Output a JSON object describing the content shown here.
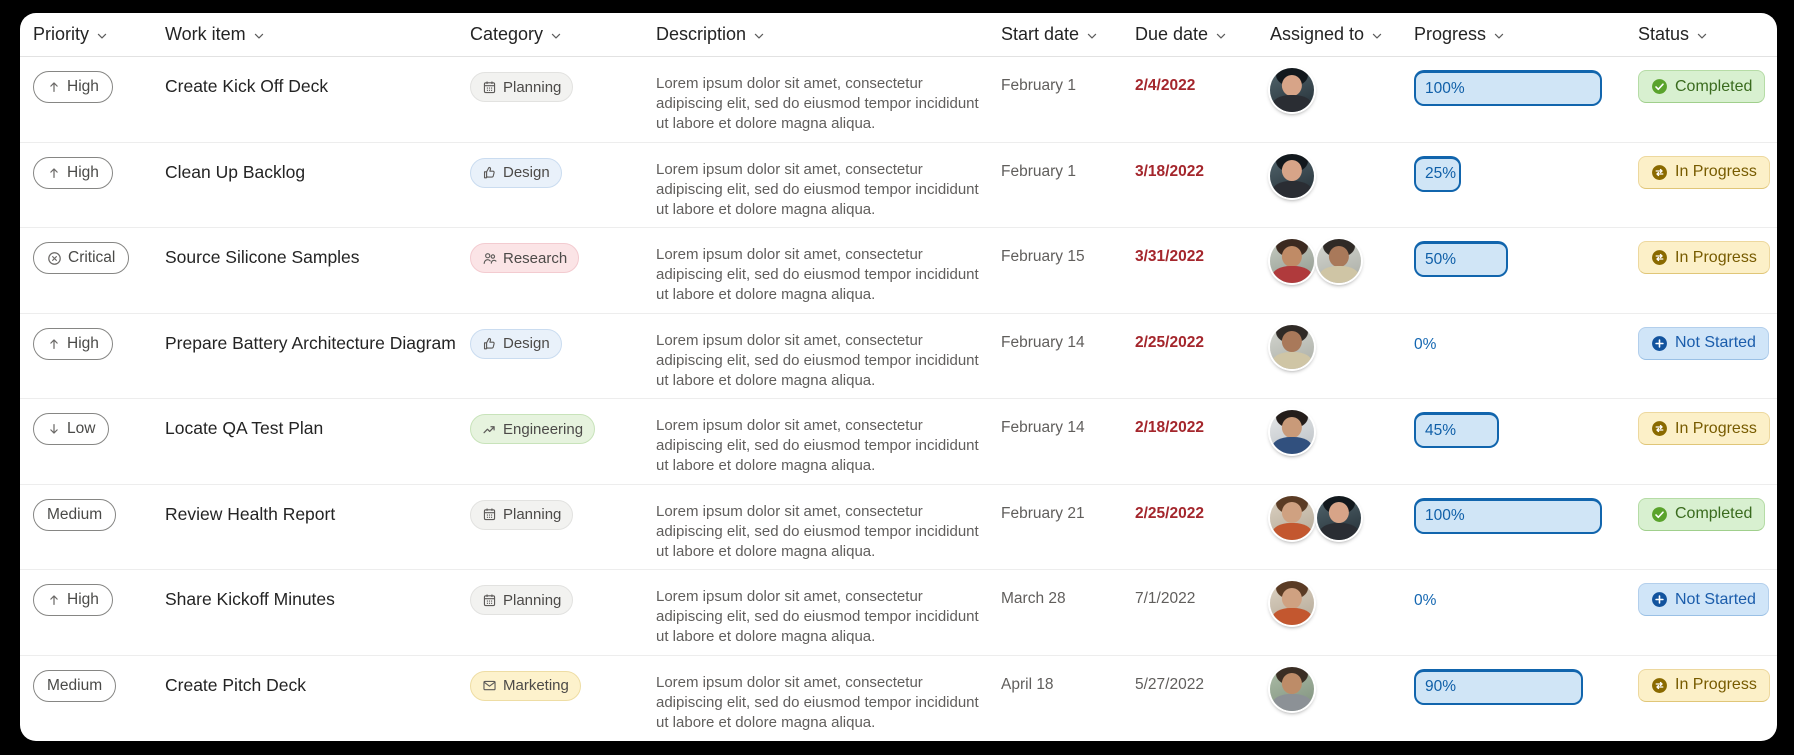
{
  "table": {
    "columns": [
      {
        "key": "priority",
        "label": "Priority"
      },
      {
        "key": "work-item",
        "label": "Work item"
      },
      {
        "key": "category",
        "label": "Category"
      },
      {
        "key": "description",
        "label": "Description"
      },
      {
        "key": "start-date",
        "label": "Start date"
      },
      {
        "key": "due-date",
        "label": "Due date"
      },
      {
        "key": "assigned-to",
        "label": "Assigned to"
      },
      {
        "key": "progress",
        "label": "Progress"
      },
      {
        "key": "status",
        "label": "Status"
      }
    ],
    "rows": [
      {
        "priority": {
          "label": "High",
          "icon": "arrow-up"
        },
        "work_item": "Create Kick Off Deck",
        "category": {
          "label": "Planning",
          "icon": "calendar",
          "theme": "gray"
        },
        "description": "Lorem ipsum dolor sit amet, consectetur adipiscing elit, sed do eiusmod tempor incididunt ut labore et dolore magna aliqua.",
        "start_date": "February 1",
        "due_date": {
          "text": "2/4/2022",
          "overdue": true
        },
        "assignees": [
          "woman-dark-hair"
        ],
        "progress": {
          "percent": 100,
          "label": "100%"
        },
        "status": {
          "label": "Completed",
          "icon": "check-circle",
          "theme": "completed"
        }
      },
      {
        "priority": {
          "label": "High",
          "icon": "arrow-up"
        },
        "work_item": "Clean Up Backlog",
        "category": {
          "label": "Design",
          "icon": "thumbs-up",
          "theme": "blue"
        },
        "description": "Lorem ipsum dolor sit amet, consectetur adipiscing elit, sed do eiusmod tempor incididunt ut labore et dolore magna aliqua.",
        "start_date": "February 1",
        "due_date": {
          "text": "3/18/2022",
          "overdue": true
        },
        "assignees": [
          "woman-dark-hair"
        ],
        "progress": {
          "percent": 25,
          "label": "25%"
        },
        "status": {
          "label": "In Progress",
          "icon": "sync-circle",
          "theme": "inprogress"
        }
      },
      {
        "priority": {
          "label": "Critical",
          "icon": "critical"
        },
        "work_item": "Source Silicone Samples",
        "category": {
          "label": "Research",
          "icon": "people",
          "theme": "pink"
        },
        "description": "Lorem ipsum dolor sit amet, consectetur adipiscing elit, sed do eiusmod tempor incididunt ut labore et dolore magna aliqua.",
        "start_date": "February 15",
        "due_date": {
          "text": "3/31/2022",
          "overdue": true
        },
        "assignees": [
          "woman-red-jacket",
          "man-tan-vest"
        ],
        "progress": {
          "percent": 50,
          "label": "50%"
        },
        "status": {
          "label": "In Progress",
          "icon": "sync-circle",
          "theme": "inprogress"
        }
      },
      {
        "priority": {
          "label": "High",
          "icon": "arrow-up"
        },
        "work_item": "Prepare Battery Architecture Diagram",
        "category": {
          "label": "Design",
          "icon": "thumbs-up",
          "theme": "blue"
        },
        "description": "Lorem ipsum dolor sit amet, consectetur adipiscing elit, sed do eiusmod tempor incididunt ut labore et dolore magna aliqua.",
        "start_date": "February 14",
        "due_date": {
          "text": "2/25/2022",
          "overdue": true
        },
        "assignees": [
          "man-tan-vest"
        ],
        "progress": {
          "percent": 0,
          "label": "0%"
        },
        "status": {
          "label": "Not Started",
          "icon": "plus-circle",
          "theme": "notstarted"
        }
      },
      {
        "priority": {
          "label": "Low",
          "icon": "arrow-down"
        },
        "work_item": "Locate QA Test Plan",
        "category": {
          "label": "Engineering",
          "icon": "trend-up",
          "theme": "green"
        },
        "description": "Lorem ipsum dolor sit amet, consectetur adipiscing elit, sed do eiusmod tempor incididunt ut labore et dolore magna aliqua.",
        "start_date": "February 14",
        "due_date": {
          "text": "2/18/2022",
          "overdue": true
        },
        "assignees": [
          "woman-blue-top"
        ],
        "progress": {
          "percent": 45,
          "label": "45%"
        },
        "status": {
          "label": "In Progress",
          "icon": "sync-circle",
          "theme": "inprogress"
        }
      },
      {
        "priority": {
          "label": "Medium",
          "icon": null
        },
        "work_item": "Review Health Report",
        "category": {
          "label": "Planning",
          "icon": "calendar",
          "theme": "gray"
        },
        "description": "Lorem ipsum dolor sit amet, consectetur adipiscing elit, sed do eiusmod tempor incididunt ut labore et dolore magna aliqua.",
        "start_date": "February 21",
        "due_date": {
          "text": "2/25/2022",
          "overdue": true
        },
        "assignees": [
          "woman-brown-hair",
          "woman-dark-hair"
        ],
        "progress": {
          "percent": 100,
          "label": "100%"
        },
        "status": {
          "label": "Completed",
          "icon": "check-circle",
          "theme": "completed"
        }
      },
      {
        "priority": {
          "label": "High",
          "icon": "arrow-up"
        },
        "work_item": "Share Kickoff Minutes",
        "category": {
          "label": "Planning",
          "icon": "calendar",
          "theme": "gray"
        },
        "description": "Lorem ipsum dolor sit amet, consectetur adipiscing elit, sed do eiusmod tempor incididunt ut labore et dolore magna aliqua.",
        "start_date": "March 28",
        "due_date": {
          "text": "7/1/2022",
          "overdue": false
        },
        "assignees": [
          "woman-brown-hair"
        ],
        "progress": {
          "percent": 0,
          "label": "0%"
        },
        "status": {
          "label": "Not Started",
          "icon": "plus-circle",
          "theme": "notstarted"
        }
      },
      {
        "priority": {
          "label": "Medium",
          "icon": null
        },
        "work_item": "Create Pitch Deck",
        "category": {
          "label": "Marketing",
          "icon": "envelope",
          "theme": "yellow"
        },
        "description": "Lorem ipsum dolor sit amet, consectetur adipiscing elit, sed do eiusmod tempor incididunt ut labore et dolore magna aliqua.",
        "start_date": "April 18",
        "due_date": {
          "text": "5/27/2022",
          "overdue": false
        },
        "assignees": [
          "man-gray-shirt"
        ],
        "progress": {
          "percent": 90,
          "label": "90%"
        },
        "status": {
          "label": "In Progress",
          "icon": "sync-circle",
          "theme": "inprogress"
        }
      }
    ]
  },
  "colors": {
    "page_background": "#000000",
    "card_background": "#ffffff",
    "header_text": "#242424",
    "body_text": "#605e5c",
    "overdue_date": "#a4262c",
    "progress_fill": "#d0e5f6",
    "progress_border": "#1165ad",
    "progress_text": "#0f5fa8",
    "status_completed_bg": "#d8f0d0",
    "status_completed_text": "#3a6b1e",
    "status_inprogress_bg": "#fcf0c8",
    "status_inprogress_text": "#775b00",
    "status_notstarted_bg": "#d0e5f8",
    "status_notstarted_text": "#1a5cab",
    "category_planning_bg": "#f2f2f0",
    "category_design_bg": "#e9f1fa",
    "category_research_bg": "#fbe4e6",
    "category_engineering_bg": "#e6f3de",
    "category_marketing_bg": "#fdf2cc"
  }
}
